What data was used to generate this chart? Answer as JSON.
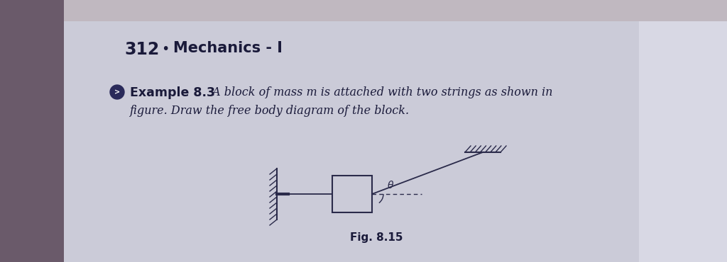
{
  "bg_left_color": "#7a6a7a",
  "bg_right_color": "#c8c8d8",
  "page_color": "#ccccd8",
  "spine_color": "#7a6878",
  "text_color": "#1a1a3a",
  "diagram_color": "#2a2a4a",
  "title_num": "312",
  "bullet": "•",
  "heading": "Mechanics - I",
  "ex_label": "Example 8.3",
  "ex_text1": " A block of mass m is attached with two strings as shown in",
  "ex_text2": "figure. Draw the free body diagram of the block.",
  "fig_label": "Fig. 8.15",
  "theta_sym": "θ"
}
